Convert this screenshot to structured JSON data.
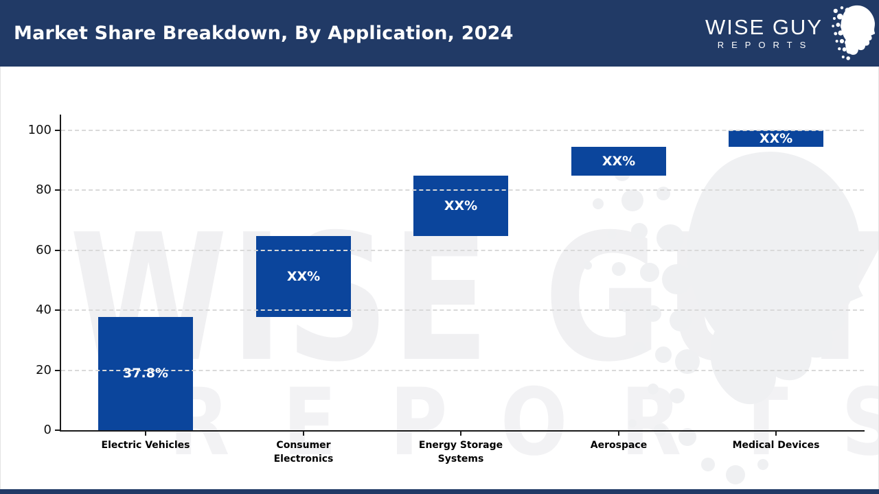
{
  "header": {
    "title": "Market Share Breakdown, By Application, 2024",
    "logo": {
      "line1": "WISE GUY",
      "line2": "REPORTS"
    }
  },
  "watermark": {
    "line1": "WISE GUY",
    "line2": "R E P O R T S"
  },
  "colors": {
    "header_bg": "#213a66",
    "bar": "#0b459c",
    "bar_label": "#ffffff",
    "grid": "#d9d9d9",
    "axis": "#1a1a1a",
    "watermark": "#f0f0f2"
  },
  "chart_data": {
    "type": "bar",
    "subtype": "waterfall",
    "title": "Market Share Breakdown, By Application, 2024",
    "categories": [
      {
        "lines": [
          "Electric Vehicles"
        ]
      },
      {
        "lines": [
          "Consumer",
          "Electronics"
        ]
      },
      {
        "lines": [
          "Energy Storage",
          "Systems"
        ]
      },
      {
        "lines": [
          "Aerospace"
        ]
      },
      {
        "lines": [
          "Medical Devices"
        ]
      }
    ],
    "segments": [
      {
        "category": "Electric Vehicles",
        "start": 0,
        "end": 37.8,
        "label": "37.8%"
      },
      {
        "category": "Consumer Electronics",
        "start": 37.8,
        "end": 64.7,
        "label": "XX%"
      },
      {
        "category": "Energy Storage Systems",
        "start": 64.7,
        "end": 84.8,
        "label": "XX%"
      },
      {
        "category": "Aerospace",
        "start": 84.8,
        "end": 94.4,
        "label": "XX%"
      },
      {
        "category": "Medical Devices",
        "start": 94.4,
        "end": 100,
        "label": "XX%"
      }
    ],
    "y_ticks": [
      0,
      20,
      40,
      60,
      80,
      100
    ],
    "ylim": [
      0,
      100
    ],
    "xlabel": "",
    "ylabel": "",
    "grid": "horizontal-dashed",
    "legend": "none"
  }
}
